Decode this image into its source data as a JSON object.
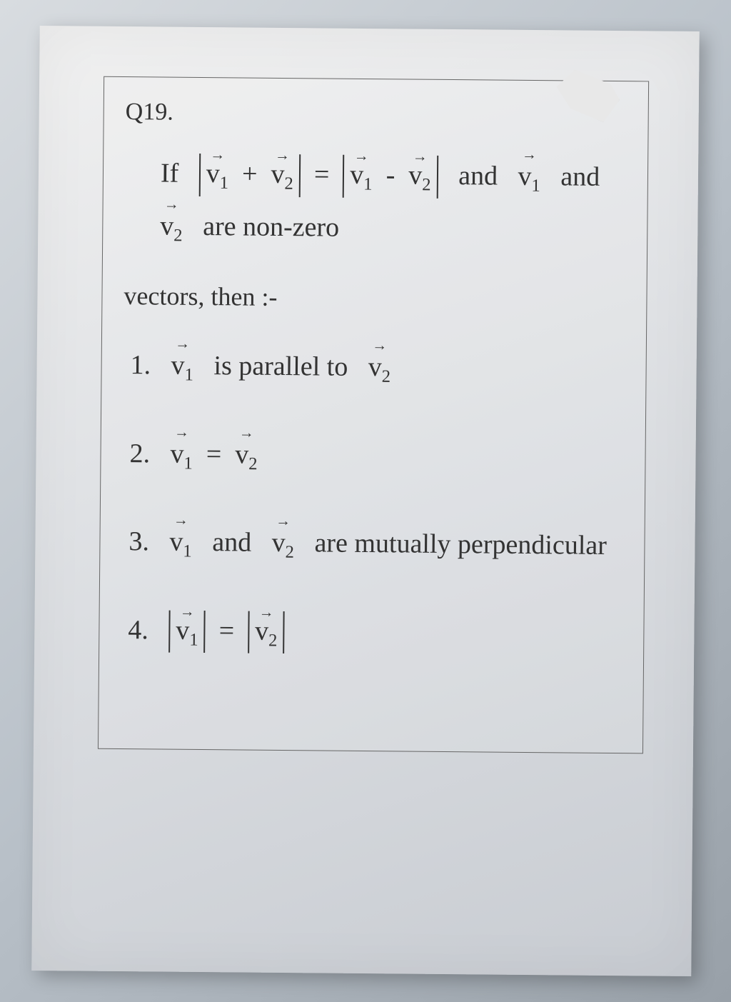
{
  "question": {
    "number": "Q19.",
    "prefix": "If",
    "lhs_inner": "v₁ + v₂",
    "rhs_inner": "v₁ - v₂",
    "eq_sign": "=",
    "tail": "and",
    "v1_text": "v₁",
    "and2": "and",
    "v2_text": "v₂",
    "nonzero": "are non-zero",
    "vectors_then": "vectors, then :-"
  },
  "options": {
    "o1_num": "1.",
    "o1_v1": "v₁",
    "o1_mid": "is parallel to",
    "o1_v2": "v₂",
    "o2_num": "2.",
    "o2_v1": "v₁",
    "o2_eq": "=",
    "o2_v2": "v₂",
    "o3_num": "3.",
    "o3_v1": "v₁",
    "o3_and": "and",
    "o3_v2": "v₂",
    "o3_tail": "are mutually perpendicular",
    "o4_num": "4.",
    "o4_v1": "v₁",
    "o4_eq": "=",
    "o4_v2": "v₂"
  },
  "style": {
    "text_color": "#333333",
    "paper_bg": "#e0e2e5",
    "border_color": "#666666",
    "font_size_q": 34,
    "font_size_eq": 38,
    "font_size_opt": 38
  }
}
